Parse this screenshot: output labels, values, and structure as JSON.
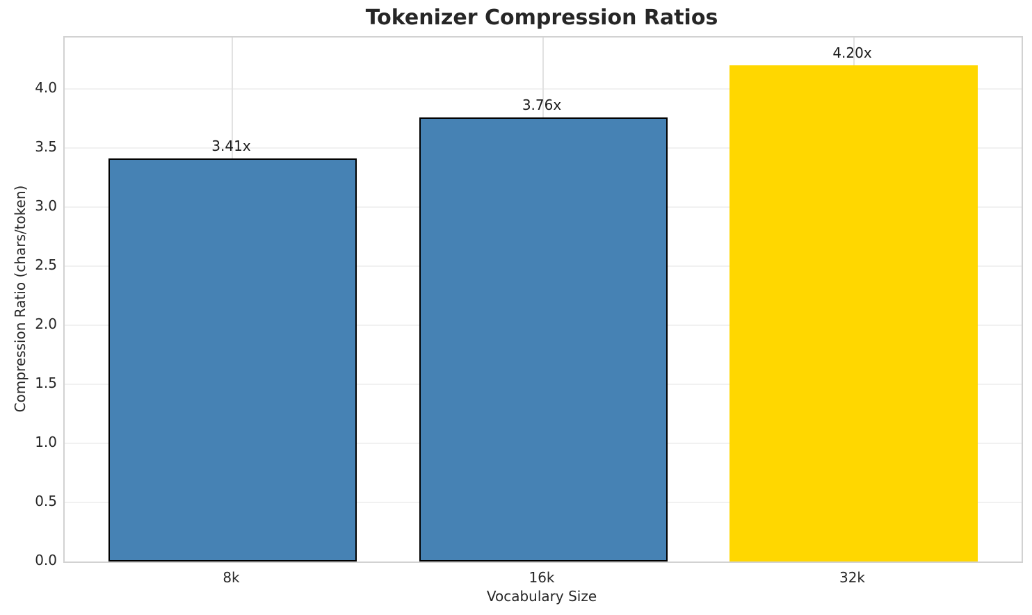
{
  "chart_data": {
    "type": "bar",
    "title": "Tokenizer Compression Ratios",
    "xlabel": "Vocabulary Size",
    "ylabel": "Compression Ratio (chars/token)",
    "categories": [
      "8k",
      "16k",
      "32k"
    ],
    "values": [
      3.41,
      3.76,
      4.2
    ],
    "bar_labels": [
      "3.41x",
      "3.76x",
      "4.20x"
    ],
    "bar_colors": [
      "#4682B4",
      "#4682B4",
      "#FFD700"
    ],
    "bar_edge_colors": [
      "#000000",
      "#000000",
      "none"
    ],
    "ytick_labels": [
      "0.0",
      "0.5",
      "1.0",
      "1.5",
      "2.0",
      "2.5",
      "3.0",
      "3.5",
      "4.0"
    ],
    "yticks": [
      0.0,
      0.5,
      1.0,
      1.5,
      2.0,
      2.5,
      3.0,
      3.5,
      4.0
    ],
    "ylim": [
      0,
      4.435
    ],
    "grid": true,
    "legend": "none",
    "grid_color": "#f1f1f1",
    "spine_color": "#d2d2d2",
    "text_color": "#262626"
  }
}
